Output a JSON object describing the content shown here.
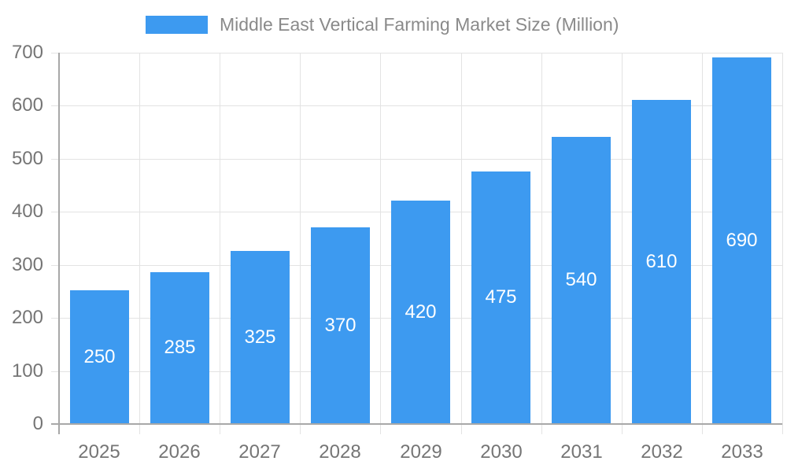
{
  "chart_data": {
    "type": "bar",
    "title": "Middle East Vertical Farming Market Size (Million)",
    "categories": [
      "2025",
      "2026",
      "2027",
      "2028",
      "2029",
      "2030",
      "2031",
      "2032",
      "2033"
    ],
    "values": [
      250,
      285,
      325,
      370,
      420,
      475,
      540,
      610,
      690
    ],
    "xlabel": "",
    "ylabel": "",
    "ylim": [
      0,
      700
    ],
    "yticks": [
      0,
      100,
      200,
      300,
      400,
      500,
      600,
      700
    ],
    "grid": "on",
    "legend_position": "top",
    "bar_labels_inside": true,
    "colors": {
      "bar": "#3D9AF0",
      "bar_value_label": "#FFFFFF",
      "grid_line": "#E3E3E3",
      "axis_line": "#A8A8A8",
      "axis_tick_label": "#757575",
      "legend_text": "#8A8A8A",
      "background": "#FFFFFF"
    }
  }
}
